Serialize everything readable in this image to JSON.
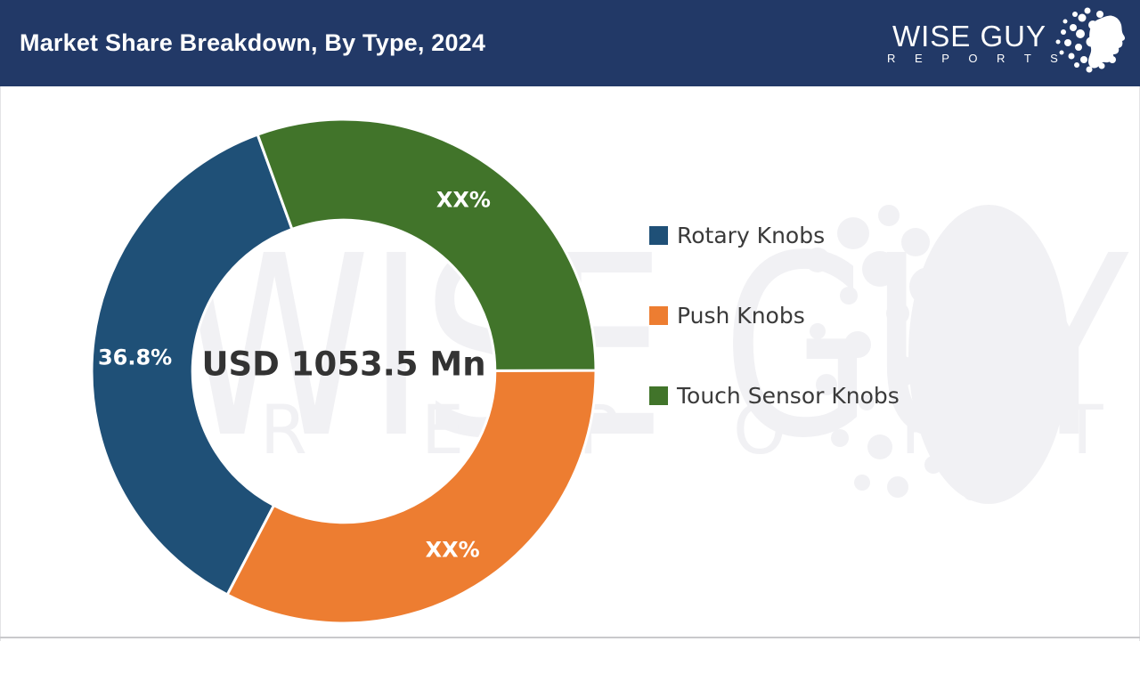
{
  "header": {
    "title": "Market Share Breakdown, By Type, 2024",
    "bg_color": "#223967",
    "logo": {
      "line1": "WISE GUY",
      "line2": "R E P O R T S"
    }
  },
  "chart_data": {
    "type": "pie",
    "subtype": "donut",
    "title": "Market Share Breakdown, By Type, 2024",
    "center_label": "USD 1053.5 Mn",
    "categories": [
      "Rotary Knobs",
      "Push Knobs",
      "Touch Sensor Knobs"
    ],
    "values": [
      36.8,
      32.7,
      30.5
    ],
    "value_labels": [
      "36.8%",
      "XX%",
      "XX%"
    ],
    "colors": [
      "#1f5077",
      "#ed7d31",
      "#41742a"
    ],
    "start_angle_deg": 110,
    "direction": "counterclockwise",
    "inner_radius_ratio": 0.6,
    "label_distance_ratio": 0.83,
    "legend_position": "right",
    "gap_color": "#ffffff"
  },
  "legend": {
    "items": [
      {
        "label": "Rotary Knobs",
        "color": "#1f5077"
      },
      {
        "label": "Push Knobs",
        "color": "#ed7d31"
      },
      {
        "label": "Touch Sensor Knobs",
        "color": "#41742a"
      }
    ]
  },
  "watermark": {
    "line1": "WISE GUY",
    "line2": "R E P O R T S"
  }
}
